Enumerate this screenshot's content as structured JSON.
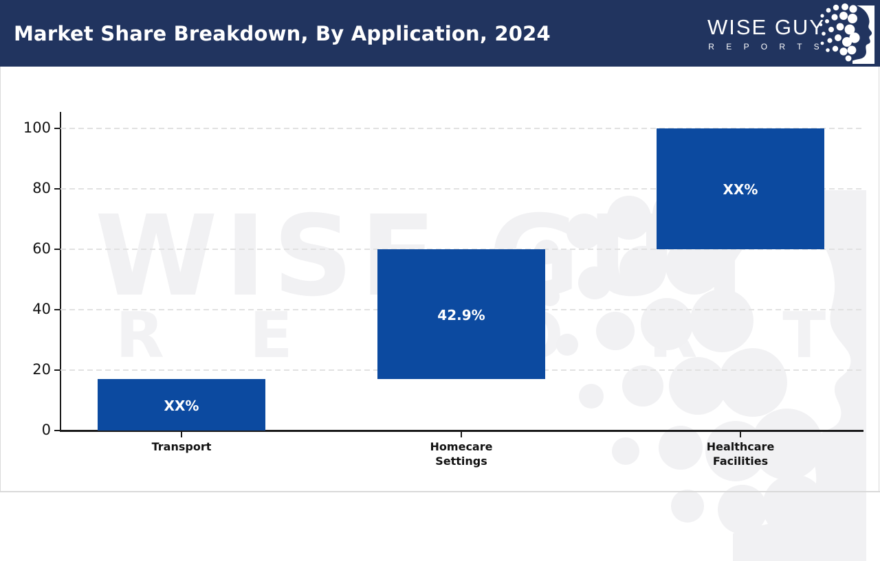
{
  "header": {
    "title": "Market Share Breakdown, By Application, 2024",
    "logo": {
      "line1": "WISE GUY",
      "line2": "R E P O R T S"
    }
  },
  "watermark": {
    "line1": "WISE GUY",
    "line2": "R E P O R T S"
  },
  "chart_data": {
    "type": "bar",
    "variant": "waterfall",
    "title": "Market Share Breakdown, By Application, 2024",
    "categories": [
      "Transport",
      "Homecare Settings",
      "Healthcare Facilities"
    ],
    "xtick_lines": [
      [
        "Transport"
      ],
      [
        "Homecare Settings"
      ],
      [
        "Healthcare",
        "Facilities"
      ]
    ],
    "series": [
      {
        "name": "Market Share",
        "segments": [
          {
            "category": "Transport",
            "start": 0,
            "end": 17.1,
            "label": "XX%"
          },
          {
            "category": "Homecare Settings",
            "start": 17.1,
            "end": 60,
            "label": "42.9%"
          },
          {
            "category": "Healthcare Facilities",
            "start": 60,
            "end": 100,
            "label": "XX%"
          }
        ]
      }
    ],
    "ylim": [
      0,
      100
    ],
    "yticks": [
      0,
      20,
      40,
      60,
      80,
      100
    ],
    "xlabel": "",
    "ylabel": "",
    "grid": "dashed-horizontal",
    "legend": "none",
    "bar_color": "#0c4aa0",
    "bar_label_color": "#ffffff",
    "header_bg_color": "#21345f",
    "watermark_color": "#f1f1f3",
    "axis_color": "#1a1a1a"
  }
}
